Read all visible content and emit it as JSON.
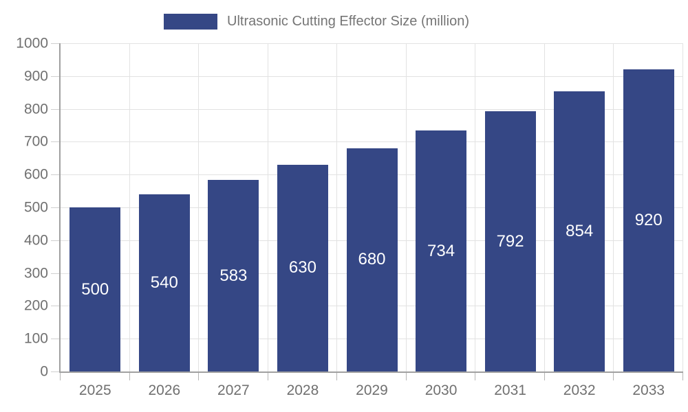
{
  "legend": {
    "label": "Ultrasonic Cutting Effector Size (million)"
  },
  "chart_data": {
    "type": "bar",
    "title": "Ultrasonic Cutting Effector Size (million)",
    "categories": [
      "2025",
      "2026",
      "2027",
      "2028",
      "2029",
      "2030",
      "2031",
      "2032",
      "2033"
    ],
    "values": [
      500,
      540,
      583,
      630,
      680,
      734,
      792,
      854,
      920
    ],
    "xlabel": "",
    "ylabel": "",
    "ylim": [
      0,
      1000
    ],
    "ytick_step": 100,
    "grid": true,
    "legend_position": "top",
    "colors": {
      "bar": "#354785",
      "bar_value_label": "#ffffff",
      "axis_tick_label": "#707070",
      "legend_text": "#757575",
      "axis_line": "#a0a0a0",
      "gridline": "#e2e2e2",
      "y_tick_mark": "#cfcfcf",
      "x_tick_mark": "#b5b5b5",
      "background": "#ffffff"
    }
  }
}
